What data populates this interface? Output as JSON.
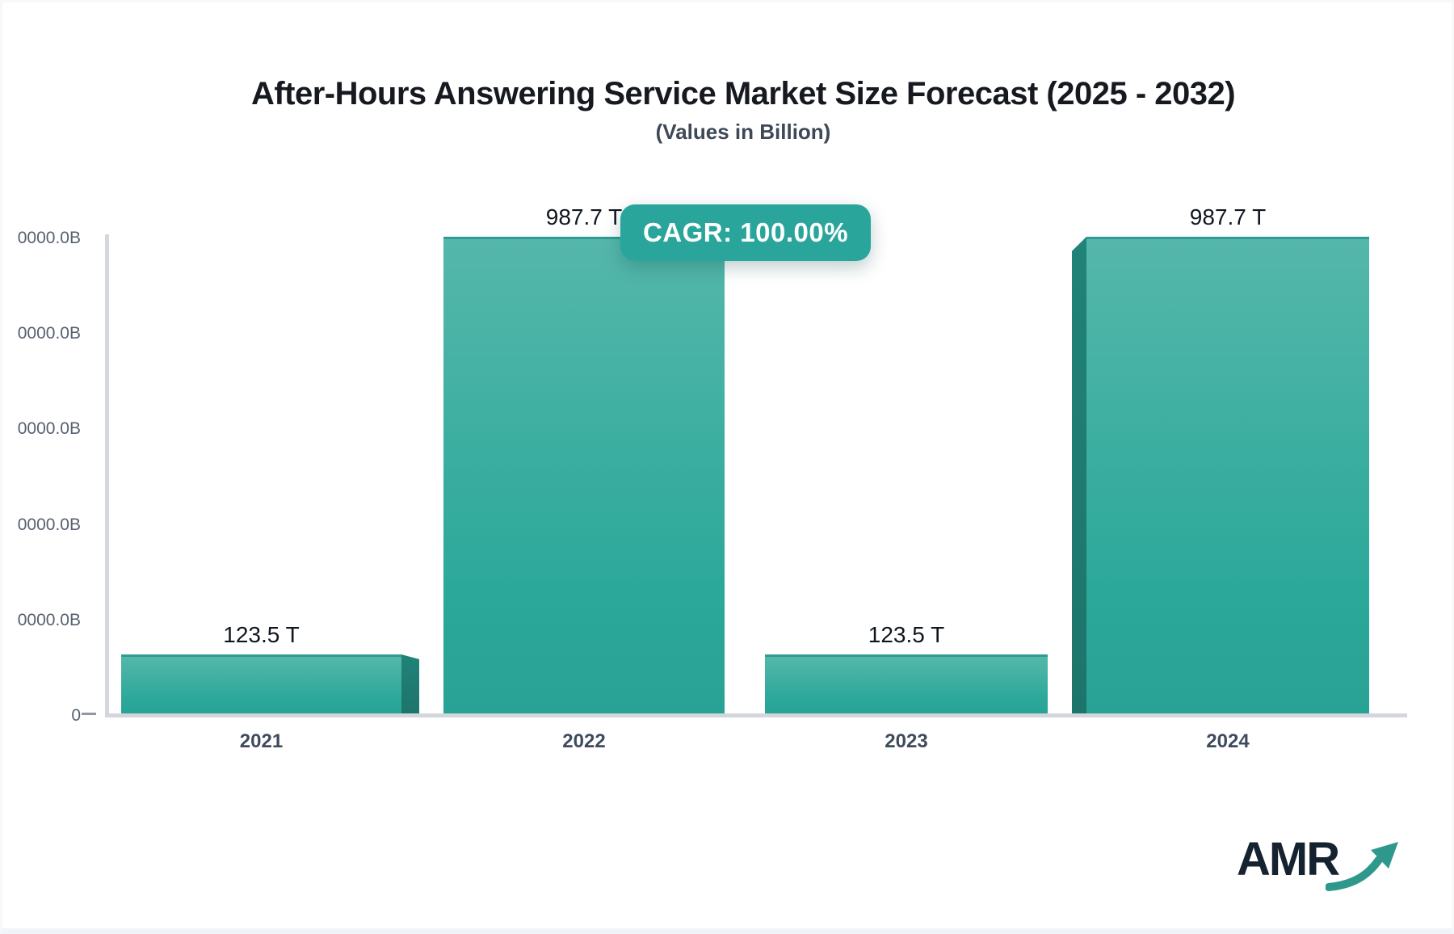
{
  "header": {
    "title": "After-Hours Answering Service Market Size Forecast (2025 - 2032)",
    "subtitle": "(Values in Billion)"
  },
  "cagr_badge": {
    "text": "CAGR: 100.00%",
    "background": "#2aa59b"
  },
  "logo": {
    "text": "AMR",
    "arrow_icon": "trend-up-arrow",
    "text_color": "#15222f",
    "arrow_color": "#2f988c"
  },
  "chart_data": {
    "type": "bar",
    "title": "After-Hours Answering Service Market Size Forecast (2025 - 2032)",
    "subtitle": "(Values in Billion)",
    "categories": [
      "2021",
      "2022",
      "2023",
      "2024"
    ],
    "values": [
      123.5,
      987.7,
      123.5,
      987.7
    ],
    "value_labels": [
      "123.5 T",
      "987.7 T",
      "123.5 T",
      "987.7 T"
    ],
    "annotation": "CAGR: 100.00%",
    "xlabel": "",
    "ylabel": "",
    "y_axis": {
      "tick_labels_top_to_bottom": [
        "0000.0B",
        "0000.0B",
        "0000.0B",
        "0000.0B",
        "0000.0B",
        "0"
      ],
      "zero_label": "0",
      "ylim_trillions": [
        0,
        1000
      ]
    },
    "grid": false,
    "legend": false,
    "colors": {
      "bar_gradient_top": "#55b7ab",
      "bar_gradient_bottom": "#28a295",
      "bar_top_edge": "#2e9c90",
      "bar_side_face": "#1f7e73",
      "axis_line": "#d3d6dc",
      "tick_text": "#57616f",
      "category_text": "#3f4b5d",
      "value_text": "#10161e"
    },
    "layout_hints": {
      "bar_3d_side": [
        "right",
        "none",
        "none",
        "left"
      ],
      "legend_position": "none",
      "y_tick_labels_truncated_at_left_edge": true
    }
  }
}
